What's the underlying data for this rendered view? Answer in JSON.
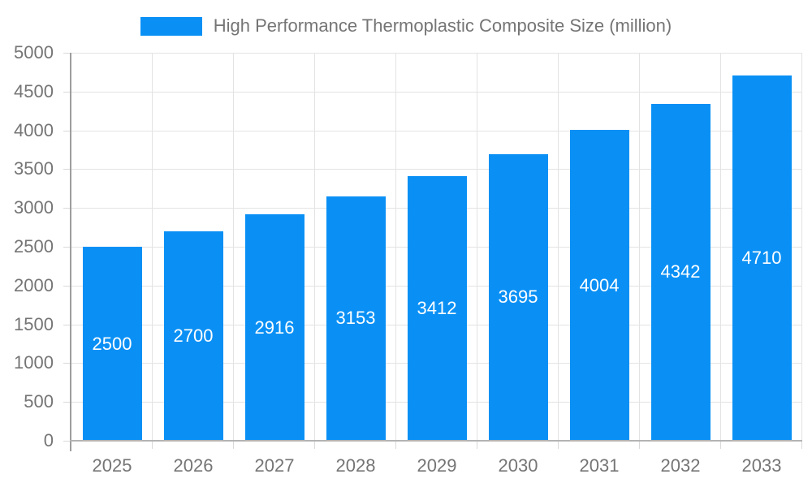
{
  "chart_data": {
    "type": "bar",
    "title": "High Performance Thermoplastic Composite Size (million)",
    "categories": [
      "2025",
      "2026",
      "2027",
      "2028",
      "2029",
      "2030",
      "2031",
      "2032",
      "2033"
    ],
    "values": [
      2500,
      2700,
      2916,
      3153,
      3412,
      3695,
      4004,
      4342,
      4710
    ],
    "xlabel": "",
    "ylabel": "",
    "ylim": [
      0,
      5000
    ],
    "ytick_step": 500,
    "legend_position": "top-center",
    "grid": "horizontal and vertical light gray",
    "value_labels": "white, centered inside bars",
    "colors": {
      "bar": "#0a90f5",
      "grid": "#e3e3e3",
      "tick": "#d9d9d9",
      "y_axis_line": "#9e9e9e",
      "x_axis_line": "#b3b3b3",
      "text": "#757575",
      "value_label": "#ffffff",
      "background": "#ffffff"
    }
  }
}
